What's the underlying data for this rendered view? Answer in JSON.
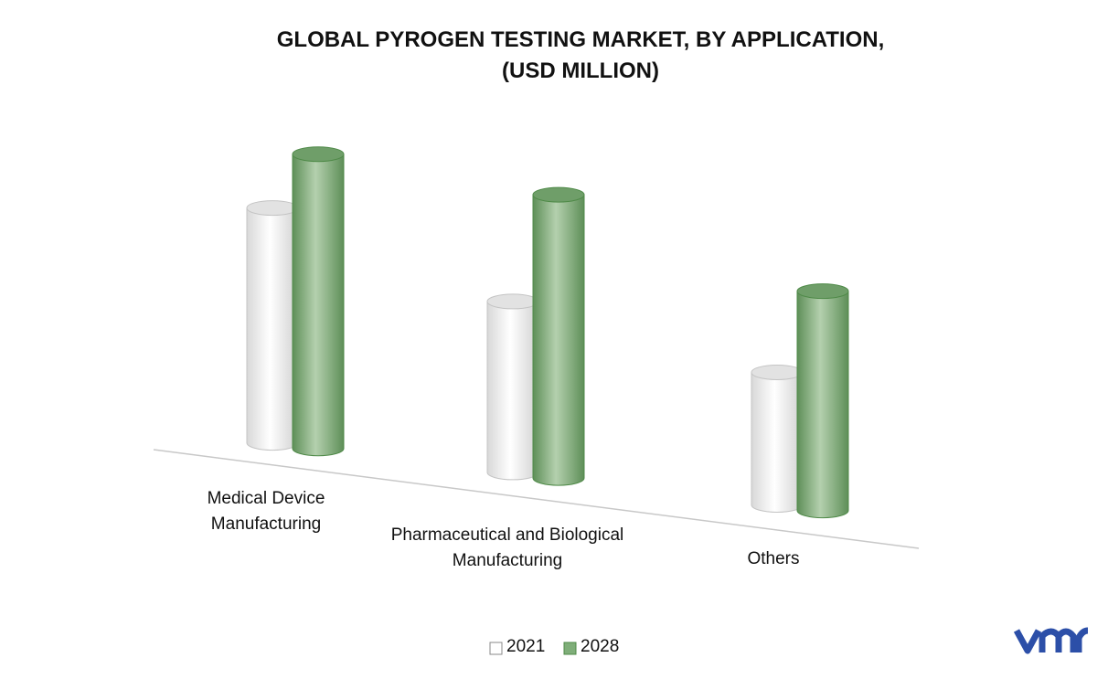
{
  "chart_data": {
    "type": "cylinder-bar",
    "title": "GLOBAL PYROGEN TESTING MARKET, BY APPLICATION,",
    "subtitle": "(USD MILLION)",
    "categories": [
      "Medical Device Manufacturing",
      "Pharmaceutical and Biological Manufacturing",
      "Others"
    ],
    "series": [
      {
        "name": "2021",
        "color": "#ffffff",
        "values": [
          257,
          187,
          145
        ]
      },
      {
        "name": "2028",
        "color": "#7fae79",
        "values": [
          322,
          310,
          240
        ]
      }
    ],
    "legend": "bottom"
  }
}
